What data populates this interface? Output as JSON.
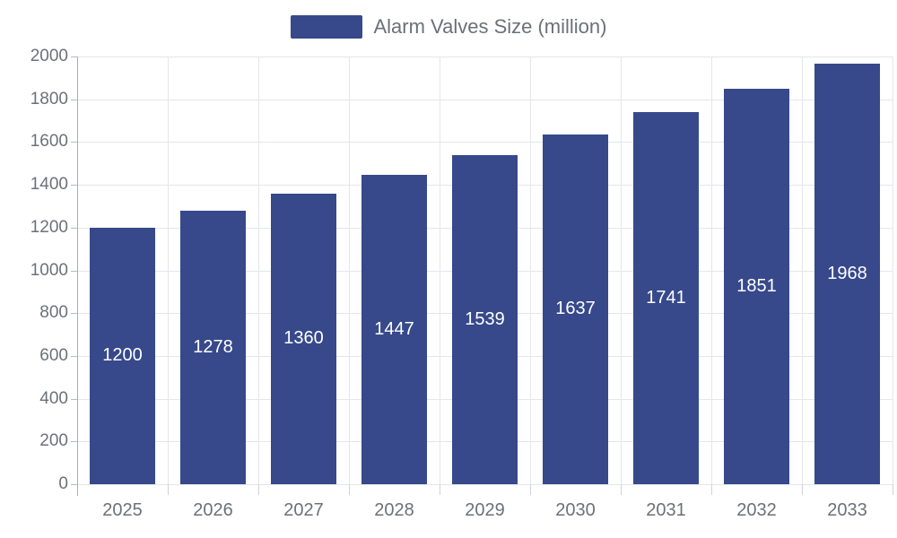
{
  "legend": {
    "label": "Alarm Valves Size (million)"
  },
  "colors": {
    "bar": "#37498b",
    "bar_label": "#ffffff",
    "axis_label": "#6e7079",
    "gridline": "#e4e6eb",
    "axis_line": "#a9adb5"
  },
  "chart_data": {
    "type": "bar",
    "title": "Alarm Valves Size (million)",
    "series_name": "Alarm Valves Size (million)",
    "categories": [
      "2025",
      "2026",
      "2027",
      "2028",
      "2029",
      "2030",
      "2031",
      "2032",
      "2033"
    ],
    "values": [
      1200,
      1278,
      1360,
      1447,
      1539,
      1637,
      1741,
      1851,
      1968
    ],
    "xlabel": "",
    "ylabel": "",
    "ylim": [
      0,
      2000
    ],
    "ytick_step": 200,
    "grid": true,
    "legend_position": "top",
    "value_labels": "inside-center"
  }
}
